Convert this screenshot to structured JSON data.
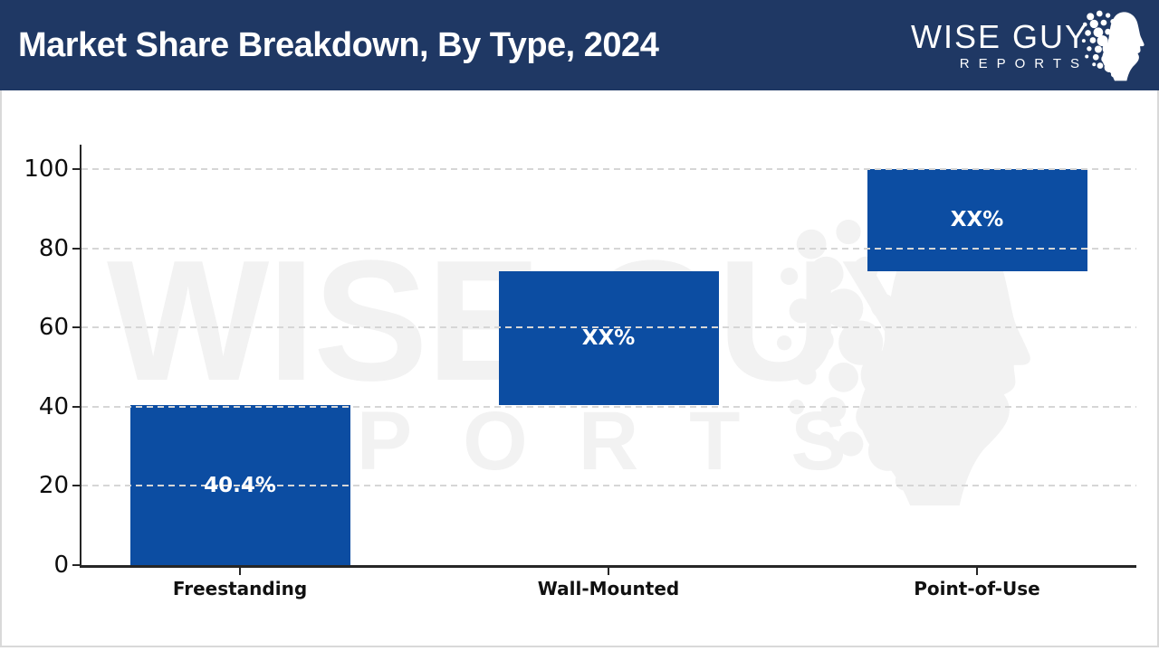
{
  "header": {
    "title": "Market Share Breakdown, By Type, 2024",
    "logo": {
      "wordmark": "WISE GUY",
      "subtext": "REPORTS"
    }
  },
  "watermark": {
    "wordmark": "WISE GUY",
    "subtext": "REPORTS"
  },
  "chart_data": {
    "type": "bar",
    "subtype": "floating-waterfall-segments",
    "title": "Market Share Breakdown, By Type, 2024",
    "categories": [
      "Freestanding",
      "Wall-Mounted",
      "Point-of-Use"
    ],
    "segments": [
      {
        "category": "Freestanding",
        "start": 0,
        "end": 40.4,
        "label": "40.4%"
      },
      {
        "category": "Wall-Mounted",
        "start": 40.4,
        "end": 74.3,
        "label": "XX%"
      },
      {
        "category": "Point-of-Use",
        "start": 74.3,
        "end": 100,
        "label": "XX%"
      }
    ],
    "ylim": [
      0,
      100
    ],
    "yticks": [
      0,
      20,
      40,
      60,
      80,
      100
    ],
    "xlabel": "",
    "ylabel": "",
    "grid": "horizontal-dashed",
    "legend": "none",
    "bar_color": "#0c4da2",
    "bar_label_color": "#ffffff"
  },
  "colors": {
    "header_bg": "#1f3864",
    "bar": "#0c4da2",
    "grid": "#d6d6d6",
    "axis": "#262626",
    "watermark": "#f2f2f2",
    "frame_border": "#d9d9d9",
    "title_text": "#ffffff"
  }
}
